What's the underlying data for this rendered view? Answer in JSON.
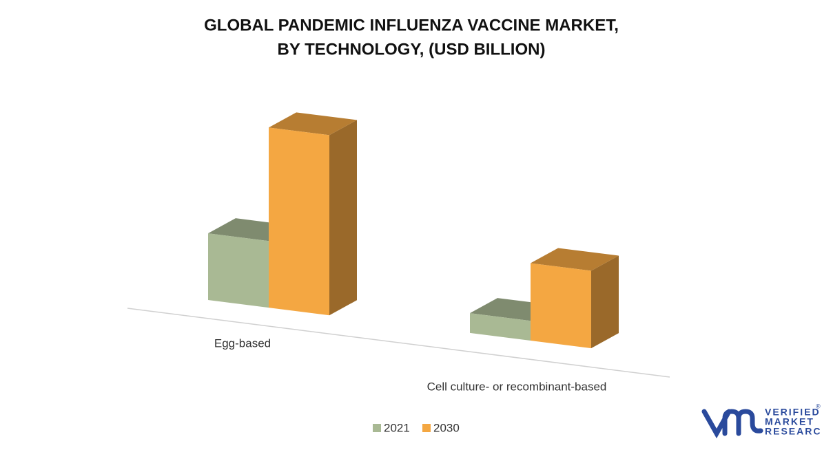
{
  "chart_data": {
    "type": "bar3d",
    "title": [
      "GLOBAL PANDEMIC INFLUENZA VACCINE MARKET,",
      "BY TECHNOLOGY,  (USD BILLION)"
    ],
    "categories": [
      "Egg-based",
      "Cell culture- or recombinant‑based"
    ],
    "series": [
      {
        "name": "2021",
        "color": "#a9b994",
        "values": [
          3.7,
          1.1
        ]
      },
      {
        "name": "2030",
        "color": "#f4a742",
        "values": [
          10,
          4.3
        ]
      }
    ],
    "ylim": [
      0,
      11
    ],
    "legend": "bottom"
  },
  "logo": {
    "lines": [
      "VERIFIED",
      "MARKET",
      "RESEARCH"
    ],
    "mark": "®"
  }
}
